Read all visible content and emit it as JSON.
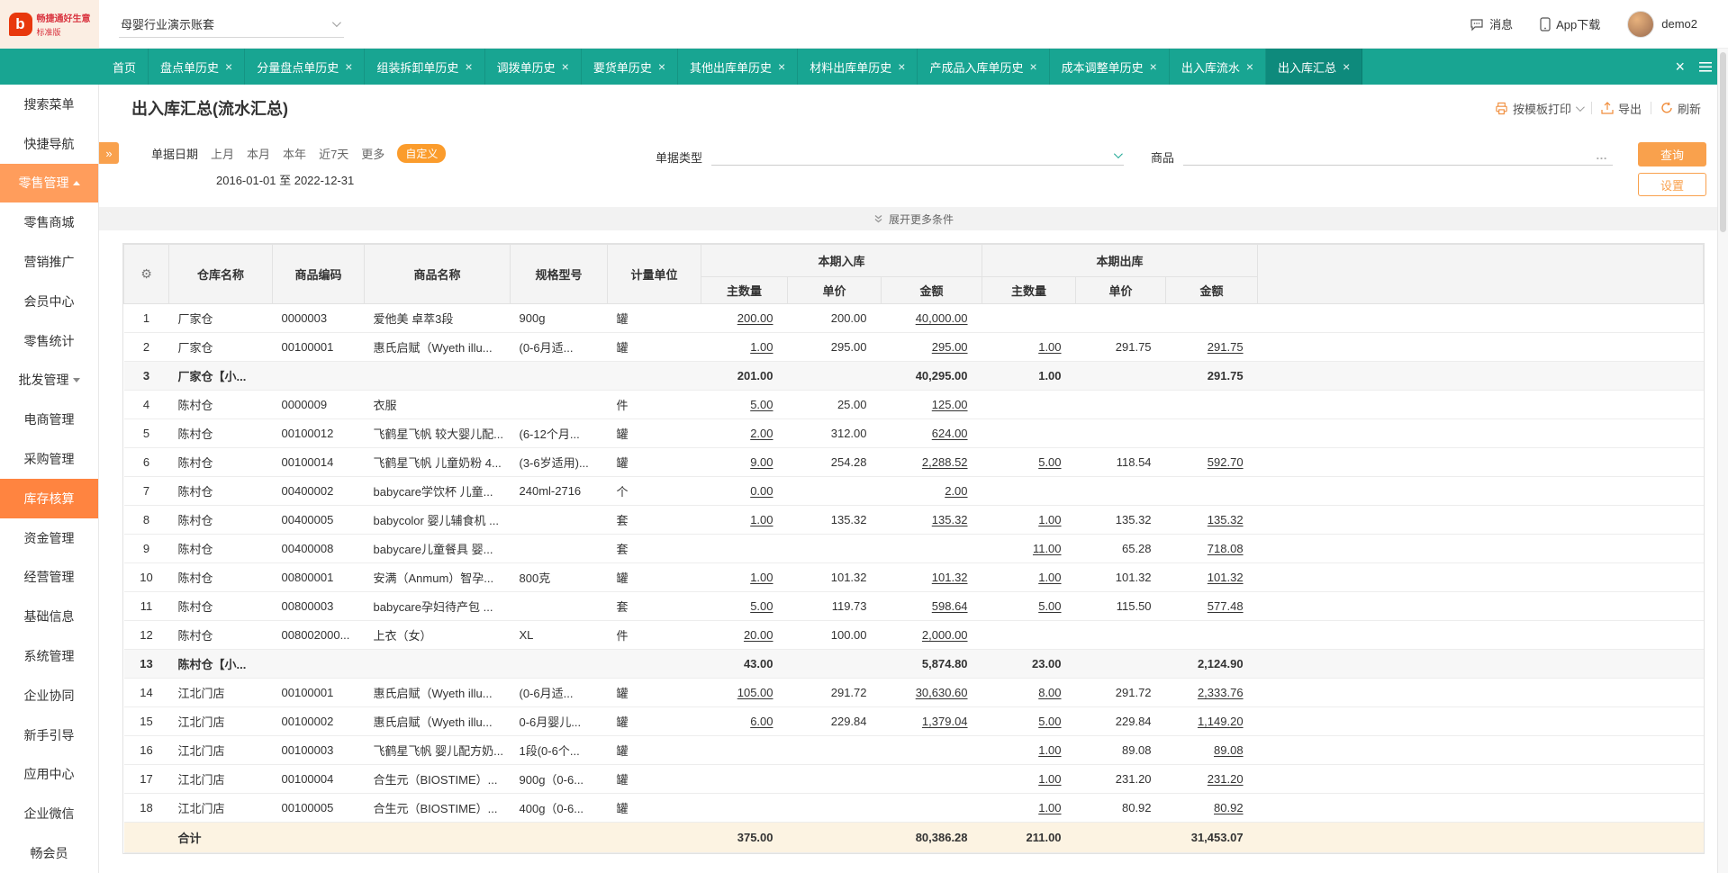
{
  "colors": {
    "teal": "#18A592",
    "teal_dark": "#0E8A7C",
    "orange": "#F9A14D",
    "orange_badge": "#FB9C2C",
    "sidebar_section_bg": "#FF9D5C",
    "sidebar_active_bg": "#FF8440",
    "logo_red": "#E8380D",
    "total_row_bg": "#FCF3E2"
  },
  "icons": {
    "logo_glyph": "b",
    "gear": "⚙",
    "close": "×",
    "collapse": "»",
    "ellipsis": "…"
  },
  "topbar": {
    "logo_title": "畅捷通好生意",
    "logo_sub": "标准版",
    "account": "母婴行业演示账套",
    "messages_label": "消息",
    "app_label": "App下载",
    "username": "demo2"
  },
  "tabbar": {
    "tabs": [
      {
        "label": "首页",
        "closable": false,
        "active": false
      },
      {
        "label": "盘点单历史",
        "closable": true,
        "active": false
      },
      {
        "label": "分量盘点单历史",
        "closable": true,
        "active": false
      },
      {
        "label": "组装拆卸单历史",
        "closable": true,
        "active": false
      },
      {
        "label": "调拨单历史",
        "closable": true,
        "active": false
      },
      {
        "label": "要货单历史",
        "closable": true,
        "active": false
      },
      {
        "label": "其他出库单历史",
        "closable": true,
        "active": false
      },
      {
        "label": "材料出库单历史",
        "closable": true,
        "active": false
      },
      {
        "label": "产成品入库单历史",
        "closable": true,
        "active": false
      },
      {
        "label": "成本调整单历史",
        "closable": true,
        "active": false
      },
      {
        "label": "出入库流水",
        "closable": true,
        "active": false
      },
      {
        "label": "出入库汇总",
        "closable": true,
        "active": true
      }
    ]
  },
  "sidebar": {
    "items": [
      {
        "id": "search-menu",
        "label": "搜索菜单",
        "style": "plain"
      },
      {
        "id": "quick-nav",
        "label": "快捷导航",
        "style": "plain"
      },
      {
        "id": "retail-mgmt",
        "label": "零售管理",
        "style": "section-open",
        "caret": "up"
      },
      {
        "id": "retail-mall",
        "label": "零售商城",
        "style": "plain"
      },
      {
        "id": "marketing",
        "label": "营销推广",
        "style": "plain"
      },
      {
        "id": "member-center",
        "label": "会员中心",
        "style": "plain"
      },
      {
        "id": "retail-stats",
        "label": "零售统计",
        "style": "plain"
      },
      {
        "id": "wholesale-mgmt",
        "label": "批发管理",
        "style": "plain",
        "caret": "down"
      },
      {
        "id": "ecommerce-mgmt",
        "label": "电商管理",
        "style": "plain"
      },
      {
        "id": "purchase-mgmt",
        "label": "采购管理",
        "style": "plain"
      },
      {
        "id": "inventory-accounting",
        "label": "库存核算",
        "style": "active"
      },
      {
        "id": "fund-mgmt",
        "label": "资金管理",
        "style": "plain"
      },
      {
        "id": "operation-mgmt",
        "label": "经营管理",
        "style": "plain"
      },
      {
        "id": "basic-info",
        "label": "基础信息",
        "style": "plain"
      },
      {
        "id": "system-mgmt",
        "label": "系统管理",
        "style": "plain"
      },
      {
        "id": "enterprise-collab",
        "label": "企业协同",
        "style": "plain"
      },
      {
        "id": "newbie-guide",
        "label": "新手引导",
        "style": "plain"
      },
      {
        "id": "app-center",
        "label": "应用中心",
        "style": "plain"
      },
      {
        "id": "enterprise-wechat",
        "label": "企业微信",
        "style": "plain"
      },
      {
        "id": "chang-member",
        "label": "畅会员",
        "style": "plain"
      }
    ]
  },
  "page": {
    "title": "出入库汇总(流水汇总)",
    "actions": {
      "print": "按模板打印",
      "export": "导出",
      "refresh": "刷新"
    }
  },
  "filters": {
    "date_label": "单据日期",
    "date_options": [
      "上月",
      "本月",
      "本年",
      "近7天",
      "更多"
    ],
    "custom_badge": "自定义",
    "date_range": "2016-01-01 至 2022-12-31",
    "doc_type_label": "单据类型",
    "product_label": "商品",
    "query_button": "查询",
    "settings_button": "设置",
    "expand_more": "展开更多条件"
  },
  "table": {
    "headers": {
      "warehouse": "仓库名称",
      "code": "商品编码",
      "name": "商品名称",
      "spec": "规格型号",
      "unit": "计量单位",
      "inbound_group": "本期入库",
      "outbound_group": "本期出库",
      "qty": "主数量",
      "price": "单价",
      "amount": "金额"
    },
    "rows": [
      {
        "type": "data",
        "num": "1",
        "warehouse": "厂家仓",
        "code": "0000003",
        "name": "爱他美 卓萃3段",
        "spec": "900g",
        "unit": "罐",
        "in_qty": "200.00",
        "in_price": "200.00",
        "in_amt": "40,000.00",
        "out_qty": "",
        "out_price": "",
        "out_amt": ""
      },
      {
        "type": "data",
        "num": "2",
        "warehouse": "厂家仓",
        "code": "00100001",
        "name": "惠氏启赋（Wyeth illu...",
        "spec": "(0-6月适...",
        "unit": "罐",
        "in_qty": "1.00",
        "in_price": "295.00",
        "in_amt": "295.00",
        "out_qty": "1.00",
        "out_price": "291.75",
        "out_amt": "291.75"
      },
      {
        "type": "subtotal",
        "num": "3",
        "warehouse": "厂家仓【小...",
        "code": "",
        "name": "",
        "spec": "",
        "unit": "",
        "in_qty": "201.00",
        "in_price": "",
        "in_amt": "40,295.00",
        "out_qty": "1.00",
        "out_price": "",
        "out_amt": "291.75"
      },
      {
        "type": "data",
        "num": "4",
        "warehouse": "陈村仓",
        "code": "0000009",
        "name": "衣服",
        "spec": "",
        "unit": "件",
        "in_qty": "5.00",
        "in_price": "25.00",
        "in_amt": "125.00",
        "out_qty": "",
        "out_price": "",
        "out_amt": ""
      },
      {
        "type": "data",
        "num": "5",
        "warehouse": "陈村仓",
        "code": "00100012",
        "name": "飞鹤星飞帆 较大婴儿配...",
        "spec": "(6-12个月...",
        "unit": "罐",
        "in_qty": "2.00",
        "in_price": "312.00",
        "in_amt": "624.00",
        "out_qty": "",
        "out_price": "",
        "out_amt": ""
      },
      {
        "type": "data",
        "num": "6",
        "warehouse": "陈村仓",
        "code": "00100014",
        "name": "飞鹤星飞帆 儿童奶粉 4...",
        "spec": "(3-6岁适用)...",
        "unit": "罐",
        "in_qty": "9.00",
        "in_price": "254.28",
        "in_amt": "2,288.52",
        "out_qty": "5.00",
        "out_price": "118.54",
        "out_amt": "592.70"
      },
      {
        "type": "data",
        "num": "7",
        "warehouse": "陈村仓",
        "code": "00400002",
        "name": "babycare学饮杯 儿童...",
        "spec": "240ml-2716",
        "unit": "个",
        "in_qty": "0.00",
        "in_price": "",
        "in_amt": "2.00",
        "out_qty": "",
        "out_price": "",
        "out_amt": ""
      },
      {
        "type": "data",
        "num": "8",
        "warehouse": "陈村仓",
        "code": "00400005",
        "name": "babycolor 婴儿辅食机 ...",
        "spec": "",
        "unit": "套",
        "in_qty": "1.00",
        "in_price": "135.32",
        "in_amt": "135.32",
        "out_qty": "1.00",
        "out_price": "135.32",
        "out_amt": "135.32"
      },
      {
        "type": "data",
        "num": "9",
        "warehouse": "陈村仓",
        "code": "00400008",
        "name": "babycare儿童餐具 婴...",
        "spec": "",
        "unit": "套",
        "in_qty": "",
        "in_price": "",
        "in_amt": "",
        "out_qty": "11.00",
        "out_price": "65.28",
        "out_amt": "718.08"
      },
      {
        "type": "data",
        "num": "10",
        "warehouse": "陈村仓",
        "code": "00800001",
        "name": "安满（Anmum）智孕...",
        "spec": "800克",
        "unit": "罐",
        "in_qty": "1.00",
        "in_price": "101.32",
        "in_amt": "101.32",
        "out_qty": "1.00",
        "out_price": "101.32",
        "out_amt": "101.32"
      },
      {
        "type": "data",
        "num": "11",
        "warehouse": "陈村仓",
        "code": "00800003",
        "name": "babycare孕妇待产包 ...",
        "spec": "",
        "unit": "套",
        "in_qty": "5.00",
        "in_price": "119.73",
        "in_amt": "598.64",
        "out_qty": "5.00",
        "out_price": "115.50",
        "out_amt": "577.48"
      },
      {
        "type": "data",
        "num": "12",
        "warehouse": "陈村仓",
        "code": "008002000...",
        "name": "上衣（女）",
        "spec": "XL",
        "unit": "件",
        "in_qty": "20.00",
        "in_price": "100.00",
        "in_amt": "2,000.00",
        "out_qty": "",
        "out_price": "",
        "out_amt": ""
      },
      {
        "type": "subtotal",
        "num": "13",
        "warehouse": "陈村仓【小...",
        "code": "",
        "name": "",
        "spec": "",
        "unit": "",
        "in_qty": "43.00",
        "in_price": "",
        "in_amt": "5,874.80",
        "out_qty": "23.00",
        "out_price": "",
        "out_amt": "2,124.90"
      },
      {
        "type": "data",
        "num": "14",
        "warehouse": "江北门店",
        "code": "00100001",
        "name": "惠氏启赋（Wyeth illu...",
        "spec": "(0-6月适...",
        "unit": "罐",
        "in_qty": "105.00",
        "in_price": "291.72",
        "in_amt": "30,630.60",
        "out_qty": "8.00",
        "out_price": "291.72",
        "out_amt": "2,333.76"
      },
      {
        "type": "data",
        "num": "15",
        "warehouse": "江北门店",
        "code": "00100002",
        "name": "惠氏启赋（Wyeth illu...",
        "spec": "0-6月婴儿...",
        "unit": "罐",
        "in_qty": "6.00",
        "in_price": "229.84",
        "in_amt": "1,379.04",
        "out_qty": "5.00",
        "out_price": "229.84",
        "out_amt": "1,149.20"
      },
      {
        "type": "data",
        "num": "16",
        "warehouse": "江北门店",
        "code": "00100003",
        "name": "飞鹤星飞帆 婴儿配方奶...",
        "spec": "1段(0-6个...",
        "unit": "罐",
        "in_qty": "",
        "in_price": "",
        "in_amt": "",
        "out_qty": "1.00",
        "out_price": "89.08",
        "out_amt": "89.08"
      },
      {
        "type": "data",
        "num": "17",
        "warehouse": "江北门店",
        "code": "00100004",
        "name": "合生元（BIOSTIME）...",
        "spec": "900g（0-6...",
        "unit": "罐",
        "in_qty": "",
        "in_price": "",
        "in_amt": "",
        "out_qty": "1.00",
        "out_price": "231.20",
        "out_amt": "231.20"
      },
      {
        "type": "data",
        "num": "18",
        "warehouse": "江北门店",
        "code": "00100005",
        "name": "合生元（BIOSTIME）...",
        "spec": "400g（0-6...",
        "unit": "罐",
        "in_qty": "",
        "in_price": "",
        "in_amt": "",
        "out_qty": "1.00",
        "out_price": "80.92",
        "out_amt": "80.92"
      },
      {
        "type": "total",
        "num": "",
        "warehouse": "合计",
        "code": "",
        "name": "",
        "spec": "",
        "unit": "",
        "in_qty": "375.00",
        "in_price": "",
        "in_amt": "80,386.28",
        "out_qty": "211.00",
        "out_price": "",
        "out_amt": "31,453.07"
      }
    ]
  }
}
